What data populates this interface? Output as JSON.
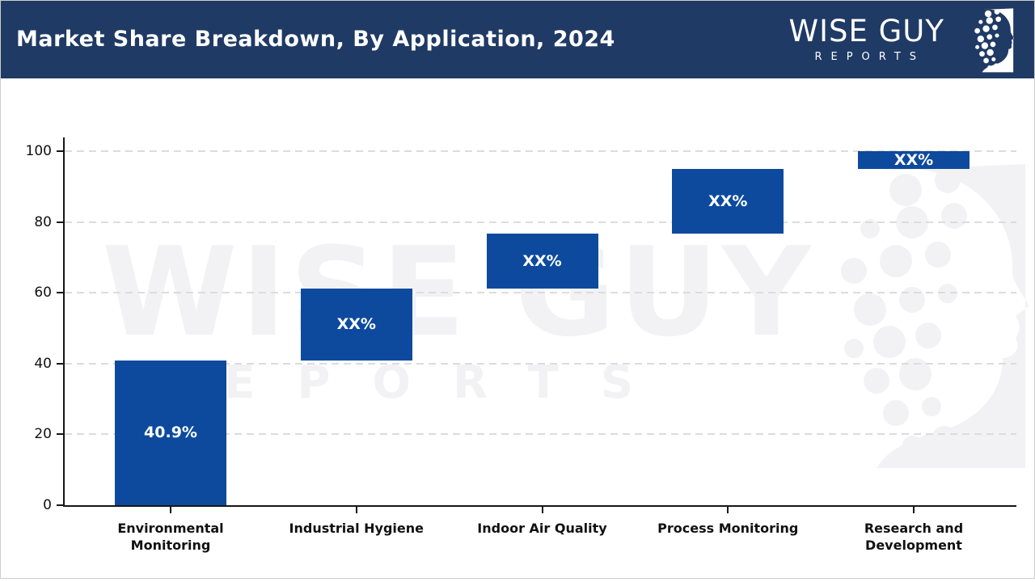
{
  "header": {
    "title": "Market Share Breakdown, By Application, 2024",
    "bg_color": "#1f3a64",
    "logo": {
      "line1": "WISE GUY",
      "line2": "REPORTS"
    }
  },
  "watermark": {
    "line1": "WISE GUY",
    "line2": "REPORTS"
  },
  "chart_data": {
    "type": "bar",
    "subtype": "waterfall",
    "title": "Market Share Breakdown, By Application, 2024",
    "categories": [
      "Environmental Monitoring",
      "Industrial Hygiene",
      "Indoor Air Quality",
      "Process Monitoring",
      "Research and Development"
    ],
    "segments": [
      {
        "category": "Environmental Monitoring",
        "start": 0,
        "end": 40.9,
        "label": "40.9%"
      },
      {
        "category": "Industrial Hygiene",
        "start": 40.9,
        "end": 61.2,
        "label": "XX%"
      },
      {
        "category": "Indoor Air Quality",
        "start": 61.2,
        "end": 76.7,
        "label": "XX%"
      },
      {
        "category": "Process Monitoring",
        "start": 76.7,
        "end": 95.0,
        "label": "XX%"
      },
      {
        "category": "Research and Development",
        "start": 95.0,
        "end": 100.0,
        "label": "XX%"
      }
    ],
    "y_ticks": [
      0,
      20,
      40,
      60,
      80,
      100
    ],
    "ylim": [
      0,
      104
    ],
    "xlabel": "",
    "ylabel": "",
    "grid": "horizontal-dashed",
    "legend": "none",
    "bar_color": "#0d4a9e",
    "bar_label_color": "#ffffff",
    "axis_color": "#161616",
    "gridline_color": "#dcdcdc"
  }
}
